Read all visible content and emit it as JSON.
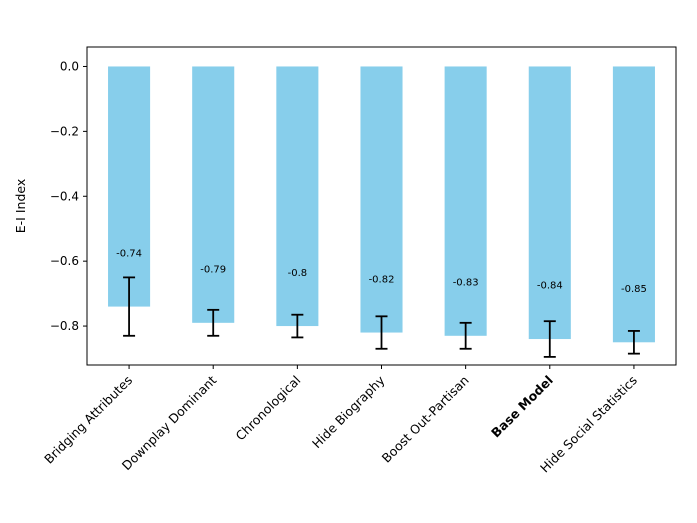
{
  "chart_data": {
    "type": "bar",
    "title": "",
    "xlabel": "",
    "ylabel": "E-I Index",
    "categories": [
      "Bridging Attributes",
      "Downplay Dominant",
      "Chronological",
      "Hide Biography",
      "Boost Out-Partisan",
      "Base Model",
      "Hide Social Statistics"
    ],
    "values": [
      -0.74,
      -0.79,
      -0.8,
      -0.82,
      -0.83,
      -0.84,
      -0.85
    ],
    "errors": [
      0.09,
      0.04,
      0.035,
      0.05,
      0.04,
      0.055,
      0.035
    ],
    "value_labels": [
      "-0.74",
      "-0.79",
      "-0.8",
      "-0.82",
      "-0.83",
      "-0.84",
      "-0.85"
    ],
    "bold_category": "Base Model",
    "bar_color": "#87CEEB",
    "error_color": "#000000",
    "ylim": [
      -0.92,
      0.06
    ],
    "yticks": [
      0.0,
      -0.2,
      -0.4,
      -0.6,
      -0.8
    ],
    "ytick_labels": [
      "0.0",
      "−0.2",
      "−0.4",
      "−0.6",
      "−0.8"
    ],
    "legend": "none",
    "grid": "off"
  }
}
